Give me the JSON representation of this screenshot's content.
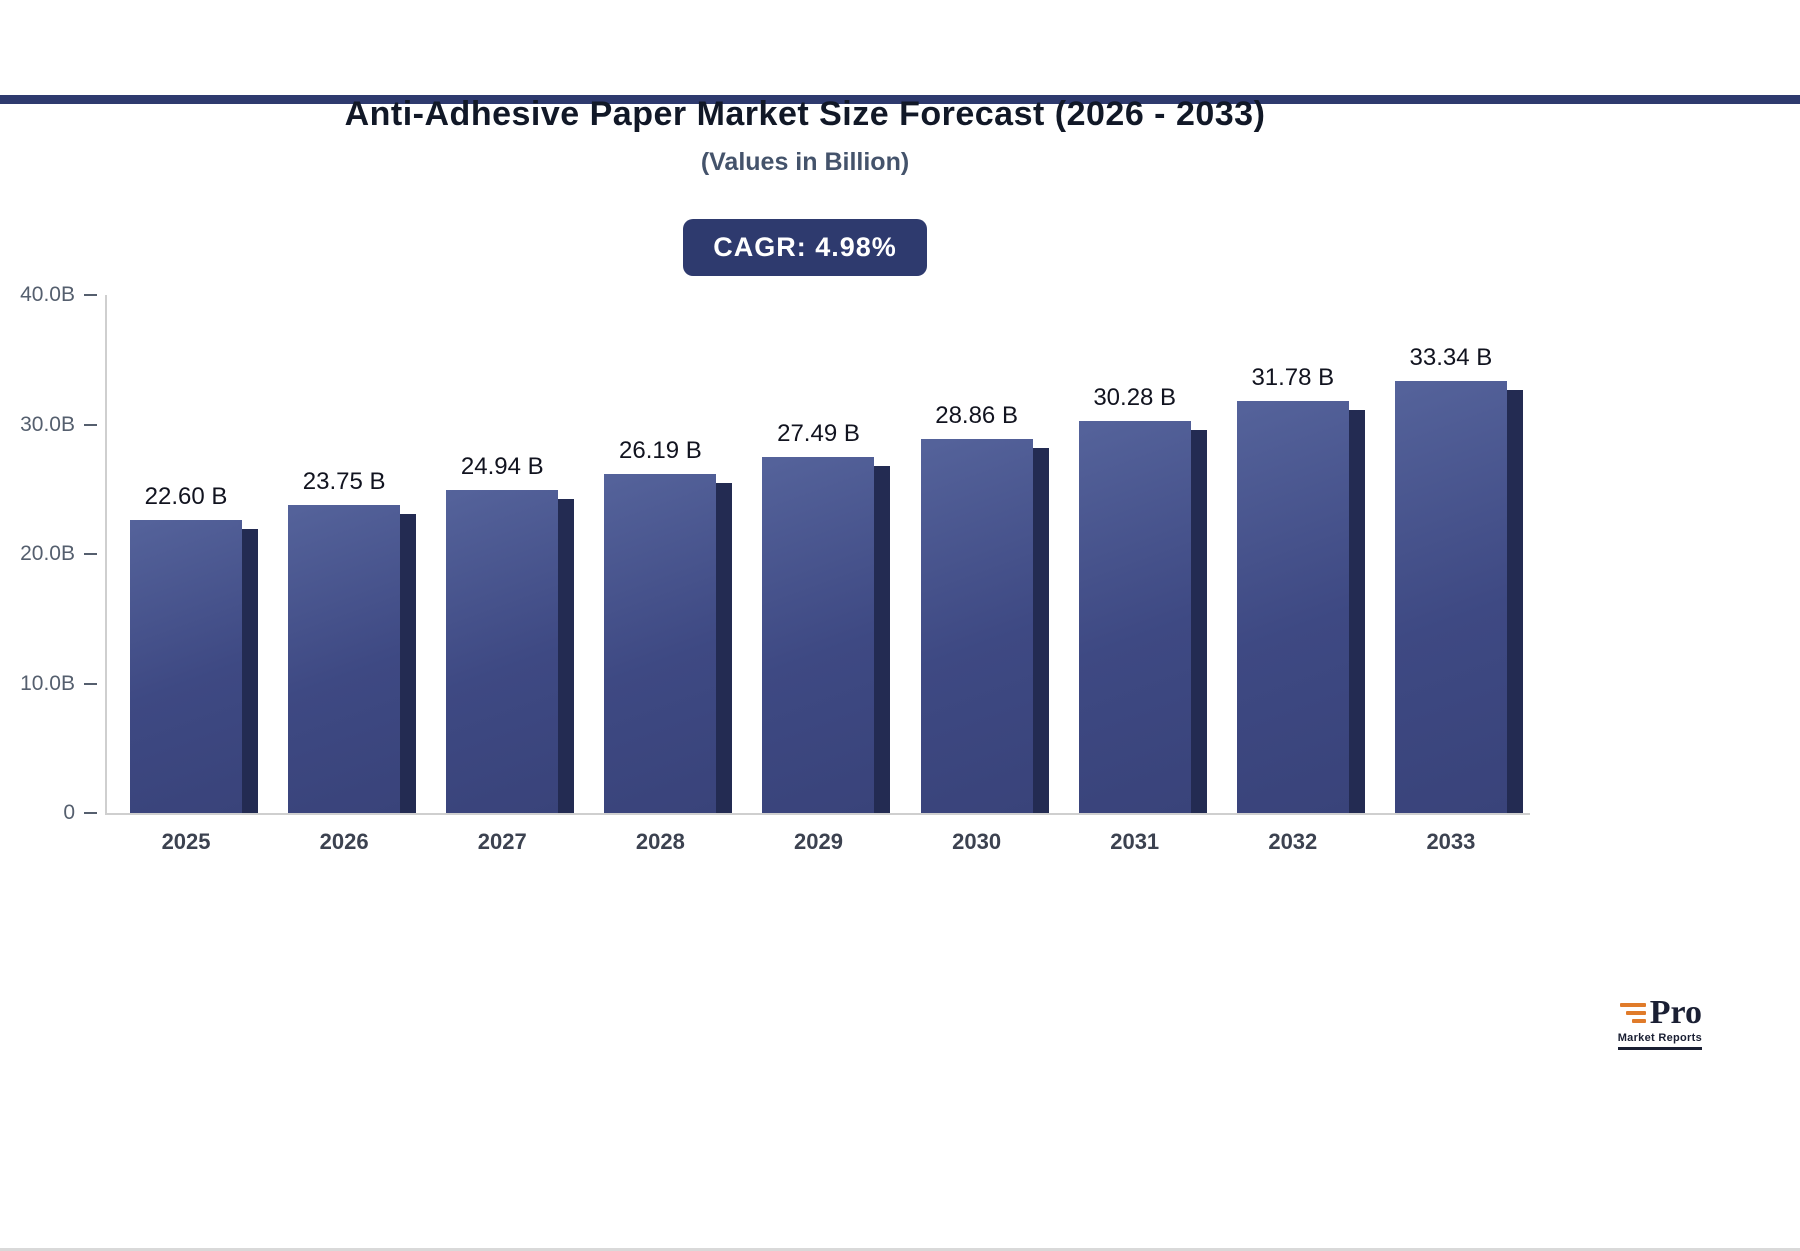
{
  "page": {
    "title": "Anti-Adhesive Paper Market Size Forecast (2026 - 2033)",
    "subtitle": "(Values in Billion)",
    "cagr_badge": "CAGR: 4.98%"
  },
  "chart_data": {
    "type": "bar",
    "title": "Anti-Adhesive Paper Market Size Forecast (2026 - 2033)",
    "subtitle": "(Values in Billion)",
    "categories": [
      "2025",
      "2026",
      "2027",
      "2028",
      "2029",
      "2030",
      "2031",
      "2032",
      "2033"
    ],
    "values": [
      22.6,
      23.75,
      24.94,
      26.19,
      27.49,
      28.86,
      30.28,
      31.78,
      33.34
    ],
    "value_labels": [
      "22.60 B",
      "23.75 B",
      "24.94 B",
      "26.19 B",
      "27.49 B",
      "28.86 B",
      "30.28 B",
      "31.78 B",
      "33.34 B"
    ],
    "xlabel": "",
    "ylabel": "",
    "ylim": [
      0,
      40
    ],
    "yticks": [
      {
        "value": 0,
        "label": "0"
      },
      {
        "value": 10,
        "label": "10.0B"
      },
      {
        "value": 20,
        "label": "20.0B"
      },
      {
        "value": 30,
        "label": "30.0B"
      },
      {
        "value": 40,
        "label": "40.0B"
      }
    ],
    "grid": false,
    "legend": false,
    "annotations": [
      "CAGR: 4.98%"
    ]
  },
  "logo": {
    "name": "Pro",
    "subtext": "Market Reports"
  },
  "colors": {
    "badge_bg": "#2e3a6e",
    "bar_top": "#55639b",
    "bar_mid": "#3e4983",
    "bar_bottom": "#39437a",
    "bar_side": "#232b52",
    "accent_orange": "#e07b2a",
    "title_color": "#111827",
    "subtitle_color": "#44536b",
    "axis_color": "#cfcfcf",
    "tick_text": "#555f6e",
    "xlabel_color": "#3c4250"
  }
}
